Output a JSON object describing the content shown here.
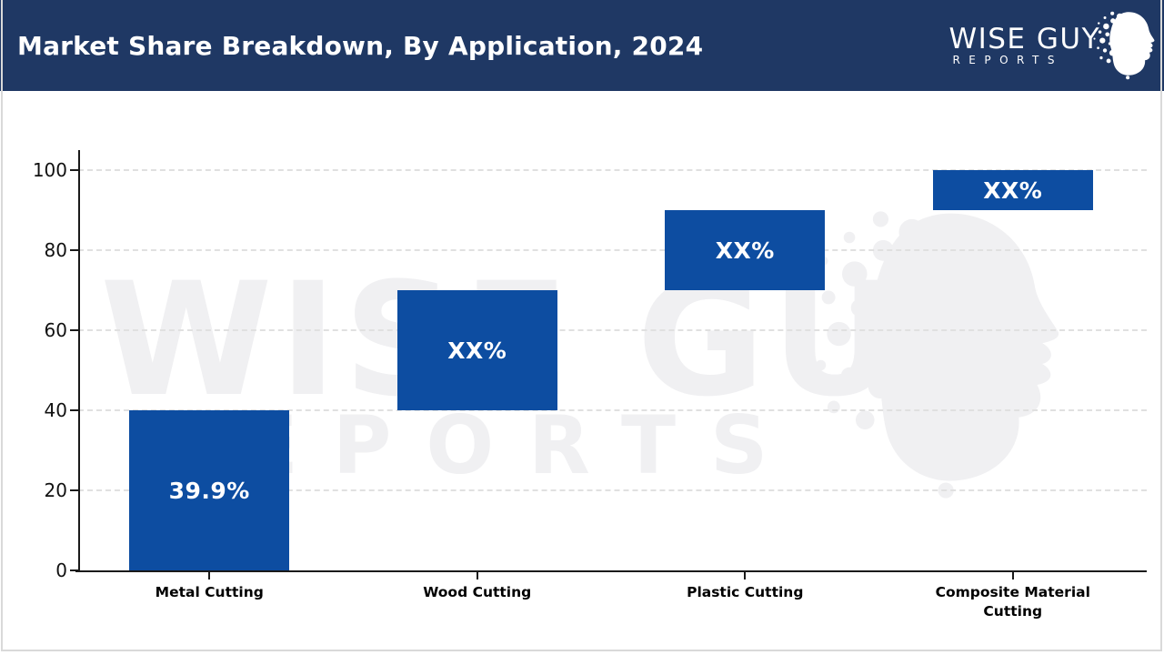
{
  "header": {
    "title": "Market Share Breakdown, By Application, 2024",
    "logo": {
      "line1": "WISE GUY",
      "line2": "REPORTS"
    }
  },
  "watermark": {
    "line1": "WISE GUY",
    "line2": "REPORTS"
  },
  "chart_data": {
    "type": "bar",
    "subtype": "stacked-waterfall",
    "title": "Market Share Breakdown, By Application, 2024",
    "xlabel": "",
    "ylabel": "",
    "ylim": [
      0,
      100
    ],
    "yticks": [
      0,
      20,
      40,
      60,
      80,
      100
    ],
    "grid": "horizontal-dashed",
    "legend": "none",
    "categories": [
      "Metal Cutting",
      "Wood Cutting",
      "Plastic Cutting",
      "Composite Material Cutting"
    ],
    "series": [
      {
        "name": "Metal Cutting",
        "start": 0,
        "end": 39.9,
        "label": "39.9%"
      },
      {
        "name": "Wood Cutting",
        "start": 39.9,
        "end": 69.9,
        "label": "XX%"
      },
      {
        "name": "Plastic Cutting",
        "start": 69.9,
        "end": 89.9,
        "label": "XX%"
      },
      {
        "name": "Composite Material Cutting",
        "start": 89.9,
        "end": 100,
        "label": "XX%"
      }
    ],
    "bar_color": "#0d4da1",
    "label_color": "#ffffff"
  },
  "colors": {
    "header_bg": "#1f3864",
    "header_text": "#ffffff",
    "bar": "#0d4da1",
    "grid": "#e0e0e0",
    "axis": "#1a1a1a",
    "tick_text": "#111111",
    "watermark": "#f0f0f2",
    "frame_border": "#d9d9d9",
    "page_bg": "#ffffff"
  }
}
